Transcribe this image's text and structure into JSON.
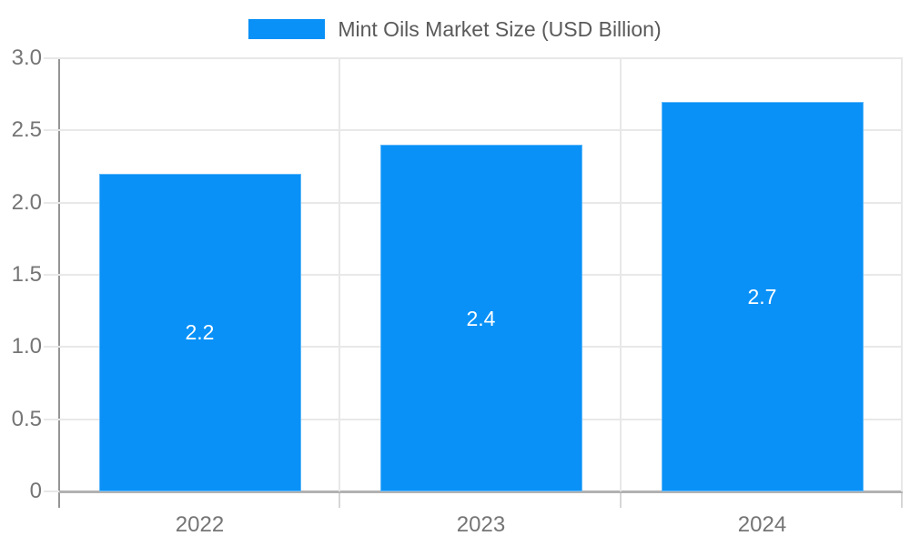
{
  "legend": {
    "label": "Mint Oils Market Size (USD Billion)",
    "swatch_color": "#0991f7"
  },
  "chart_data": {
    "type": "bar",
    "title": "Mint Oils Market Size (USD Billion)",
    "categories": [
      "2022",
      "2023",
      "2024"
    ],
    "values": [
      2.2,
      2.4,
      2.7
    ],
    "bar_labels": [
      "2.2",
      "2.4",
      "2.7"
    ],
    "xlabel": "",
    "ylabel": "",
    "ylim": [
      0,
      3.0
    ],
    "ytick_values": [
      0,
      0.5,
      1.0,
      1.5,
      2.0,
      2.5,
      3.0
    ],
    "ytick_labels": [
      "0",
      "0.5",
      "1.0",
      "1.5",
      "2.0",
      "2.5",
      "3.0"
    ],
    "grid": true,
    "legend_position": "top",
    "value_labels_inside_bars": true,
    "colors": {
      "bar": "#0991f7",
      "gridline": "#e8e8e8",
      "axis_y_line": "#949494",
      "axis_x_line": "#b2b2b2",
      "tick": "#d6d6d6",
      "axis_text": "#757575",
      "legend_text": "#5a5a5a",
      "bar_value_text": "#ffffff",
      "background": "#ffffff"
    }
  }
}
